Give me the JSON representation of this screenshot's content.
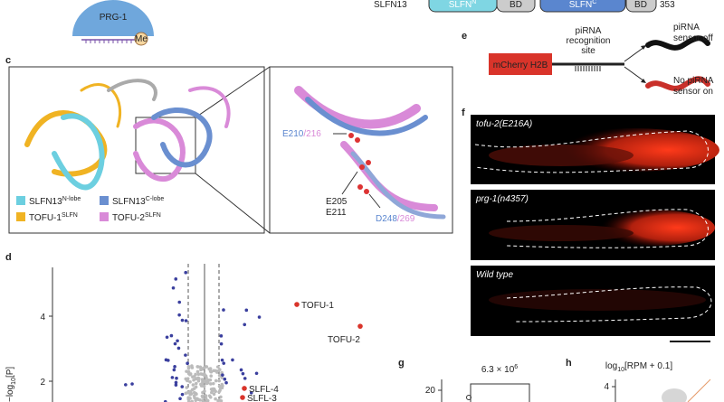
{
  "panel_labels": [
    "c",
    "d",
    "e",
    "f",
    "g",
    "h"
  ],
  "schematic": {
    "protein": "PRG-1",
    "modification": "Me"
  },
  "domain_map": {
    "name": "SLFN13",
    "domains": [
      {
        "name": "SLFN",
        "sup": "N"
      },
      {
        "name": "BD"
      },
      {
        "name": "SLFN",
        "sup": "C"
      },
      {
        "name": "BD"
      }
    ],
    "length": "353"
  },
  "structure": {
    "legend": [
      {
        "name": "SLFN13",
        "sup": "N-lobe",
        "color": "#6ccfe0"
      },
      {
        "name": "SLFN13",
        "sup": "C-lobe",
        "color": "#6a8fd0"
      },
      {
        "name": "TOFU-1",
        "sup": "SLFN",
        "color": "#f0b323"
      },
      {
        "name": "TOFU-2",
        "sup": "SLFN",
        "color": "#d98ad8"
      }
    ],
    "residues": [
      {
        "first": "E210",
        "second": "/216"
      },
      {
        "first": "E205",
        "second": "E211"
      },
      {
        "first": "D248",
        "second": "/269"
      }
    ]
  },
  "sensor": {
    "reporter": "mCherry H2B",
    "site": [
      "piRNA",
      "recognition",
      "site"
    ],
    "off": [
      "piRNA",
      "sensor off"
    ],
    "on": [
      "No piRNA",
      "sensor on"
    ]
  },
  "micrographs": [
    "tofu-2(E216A)",
    "prg-1(n4357)",
    "Wild type"
  ],
  "volcano": {
    "y_label": {
      "main": "−log",
      "sub": "10",
      "rest": "[P]"
    },
    "ylim": [
      1.4,
      5.5
    ],
    "yticks": [
      2,
      4
    ],
    "points": [
      {
        "label": "TOFU-1",
        "value": 4.36
      },
      {
        "label": "TOFU-2",
        "value": 3.69
      },
      {
        "label": "SLFL-4",
        "value": 1.78
      },
      {
        "label": "SLFL-3",
        "value": 1.5
      }
    ]
  },
  "panel_g": {
    "ytick": "20",
    "annotation": {
      "main": "6.3 × 10",
      "sup": "6"
    }
  },
  "panel_h": {
    "title": {
      "main": "log",
      "sub": "10",
      "rest": "[RPM + 0.1]"
    },
    "ytick": "4"
  }
}
